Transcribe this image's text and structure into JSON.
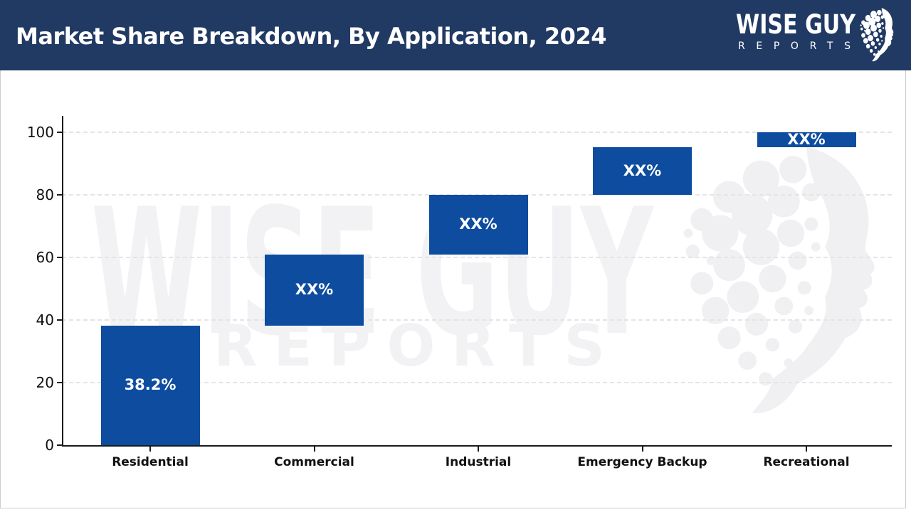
{
  "header": {
    "title": "Market Share Breakdown, By Application, 2024",
    "logo": {
      "line1": "WISE GUY",
      "line2": "REPORTS"
    }
  },
  "watermark": {
    "line1": "WISE GUY",
    "line2": "REPORTS"
  },
  "chart_data": {
    "type": "bar",
    "subtype": "waterfall",
    "title": "Market Share Breakdown, By Application, 2024",
    "categories": [
      "Residential",
      "Commercial",
      "Industrial",
      "Emergency Backup",
      "Recreational"
    ],
    "segments": [
      {
        "category": "Residential",
        "start": 0,
        "end": 38.2,
        "label": "38.2%"
      },
      {
        "category": "Commercial",
        "start": 38.2,
        "end": 61,
        "label": "XX%"
      },
      {
        "category": "Industrial",
        "start": 61,
        "end": 80,
        "label": "XX%"
      },
      {
        "category": "Emergency Backup",
        "start": 80,
        "end": 95.3,
        "label": "XX%"
      },
      {
        "category": "Recreational",
        "start": 95.3,
        "end": 100,
        "label": "XX%"
      }
    ],
    "yticks": [
      0,
      20,
      40,
      60,
      80,
      100
    ],
    "ylim": [
      0,
      105
    ],
    "xlabel": "",
    "ylabel": "",
    "grid": "horizontal-dashed",
    "legend": "none",
    "colors": {
      "bar": "#0D4C9F",
      "bar_label": "#FFFFFF",
      "axis": "#1A1A1A",
      "grid": "#E4E4E6",
      "header_bg": "#213A64",
      "watermark": "#F2F2F4"
    }
  }
}
